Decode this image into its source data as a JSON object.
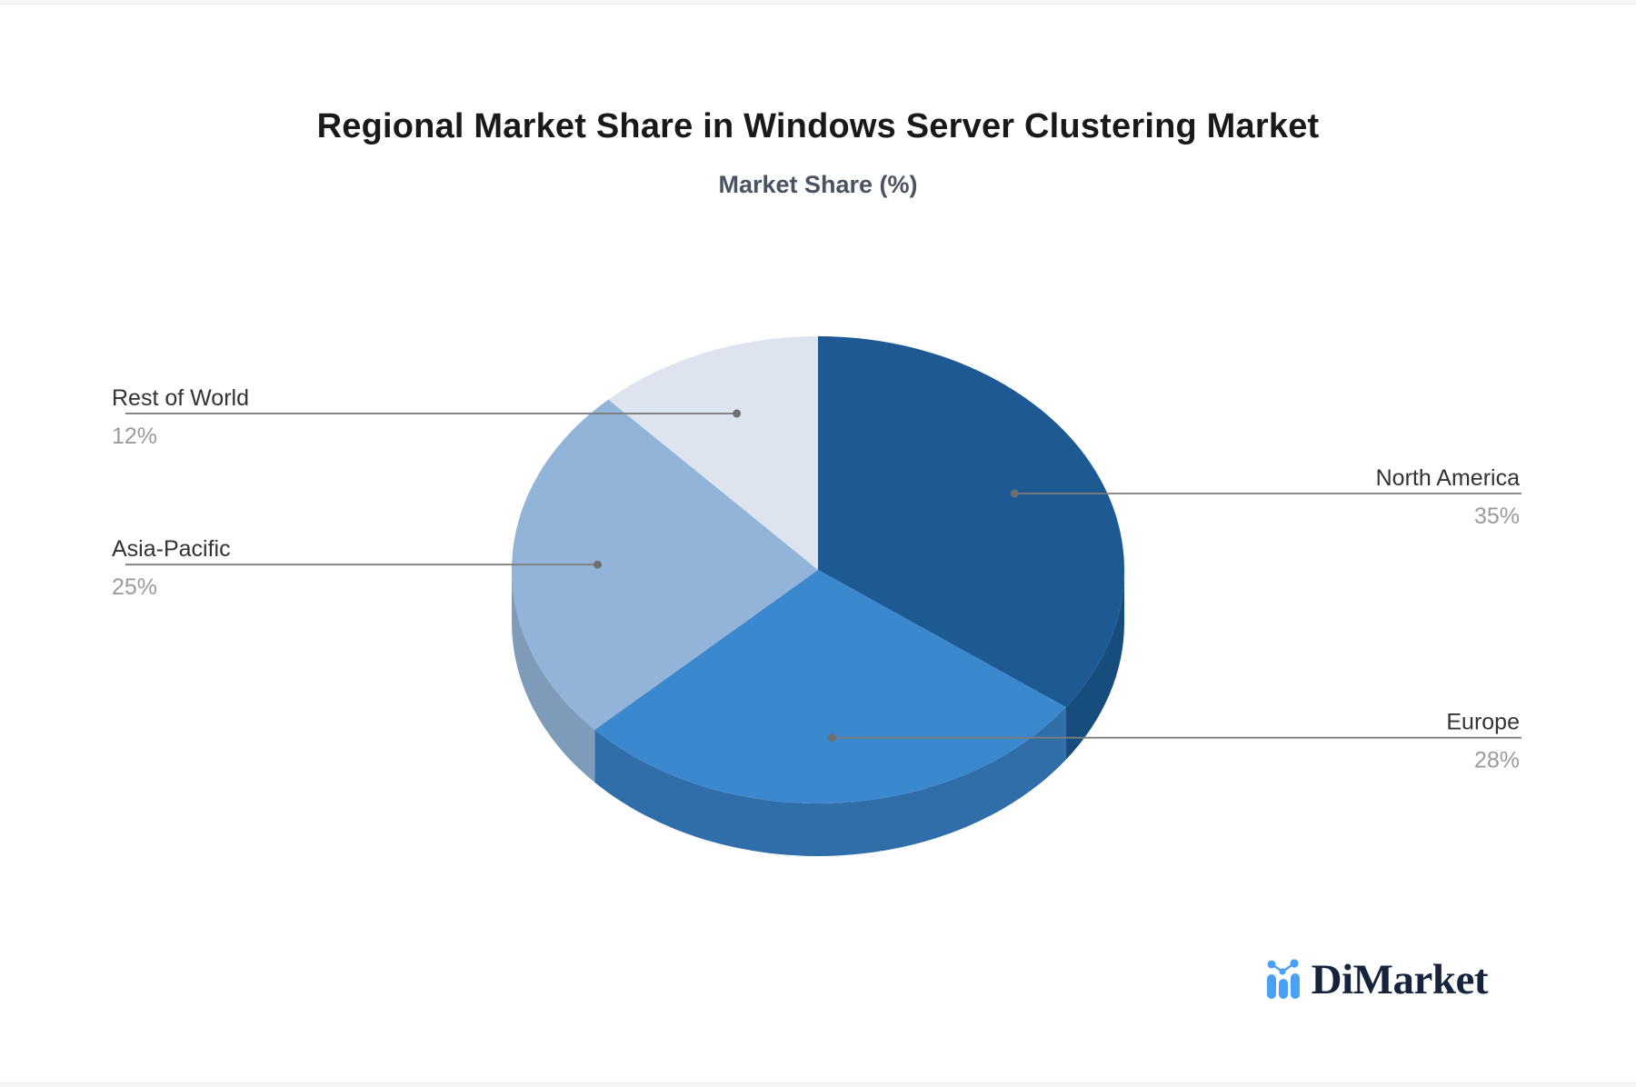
{
  "header": {
    "title": "Regional Market Share in Windows Server Clustering Market",
    "subtitle": "Market Share (%)"
  },
  "chart_data": {
    "type": "pie",
    "effect": "3d",
    "title": "Regional Market Share in Windows Server Clustering Market",
    "subtitle": "Market Share (%)",
    "unit": "%",
    "start_angle_deg": 0,
    "direction": "clockwise",
    "legend": "none",
    "slices": [
      {
        "label": "North America",
        "value": 35,
        "value_label": "35%",
        "color": "#1d5a94",
        "side_color": "#174d7d",
        "label_side": "right"
      },
      {
        "label": "Europe",
        "value": 28,
        "value_label": "28%",
        "color": "#3c88ce",
        "side_color": "#2f6ea8",
        "label_side": "right"
      },
      {
        "label": "Asia-Pacific",
        "value": 25,
        "value_label": "25%",
        "color": "#92b4d8",
        "side_color": "#7e9cba",
        "label_side": "left"
      },
      {
        "label": "Rest of World",
        "value": 12,
        "value_label": "12%",
        "color": "#dde4ef",
        "side_color": "#b9c4d6",
        "label_side": "left"
      }
    ],
    "colors": {
      "connector": "#7d7d7d",
      "connector_dot": "#6f6f6f",
      "label_name": "#333333",
      "label_value": "#9b9b9b"
    }
  },
  "brand": {
    "name": "DiMarket",
    "text_color": "#16233c",
    "icon_color": "#4aa0f4",
    "icon": "bar-line-chart-icon"
  }
}
